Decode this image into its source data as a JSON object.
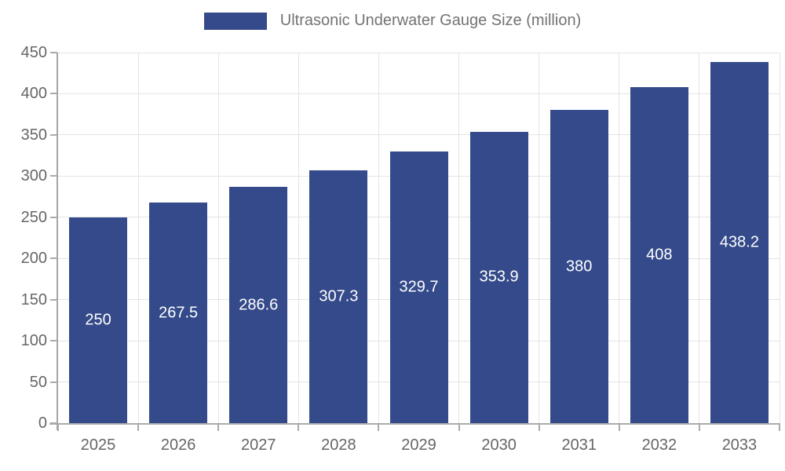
{
  "legend": {
    "label": "Ultrasonic Underwater Gauge Size (million)",
    "swatch_color": "#344a8a"
  },
  "chart_data": {
    "type": "bar",
    "title": "Ultrasonic Underwater Gauge Size (million)",
    "legend_entries": [
      "Ultrasonic Underwater Gauge Size (million)"
    ],
    "legend_position": "top",
    "categories": [
      "2025",
      "2026",
      "2027",
      "2028",
      "2029",
      "2030",
      "2031",
      "2032",
      "2033"
    ],
    "values": [
      250,
      267.5,
      286.6,
      307.3,
      329.7,
      353.9,
      380,
      408,
      438.2
    ],
    "value_labels": [
      "250",
      "267.5",
      "286.6",
      "307.3",
      "329.7",
      "353.9",
      "380",
      "408",
      "438.2"
    ],
    "xlabel": "",
    "ylabel": "",
    "ylim": [
      0,
      450
    ],
    "yticks": [
      0,
      50,
      100,
      150,
      200,
      250,
      300,
      350,
      400,
      450
    ],
    "grid": true,
    "bar_color": "#344a8a",
    "value_label_color": "#ffffff",
    "axis_label_color": "#666666",
    "grid_color": "#e4e4e4",
    "axis_line_color": "#ababab"
  }
}
